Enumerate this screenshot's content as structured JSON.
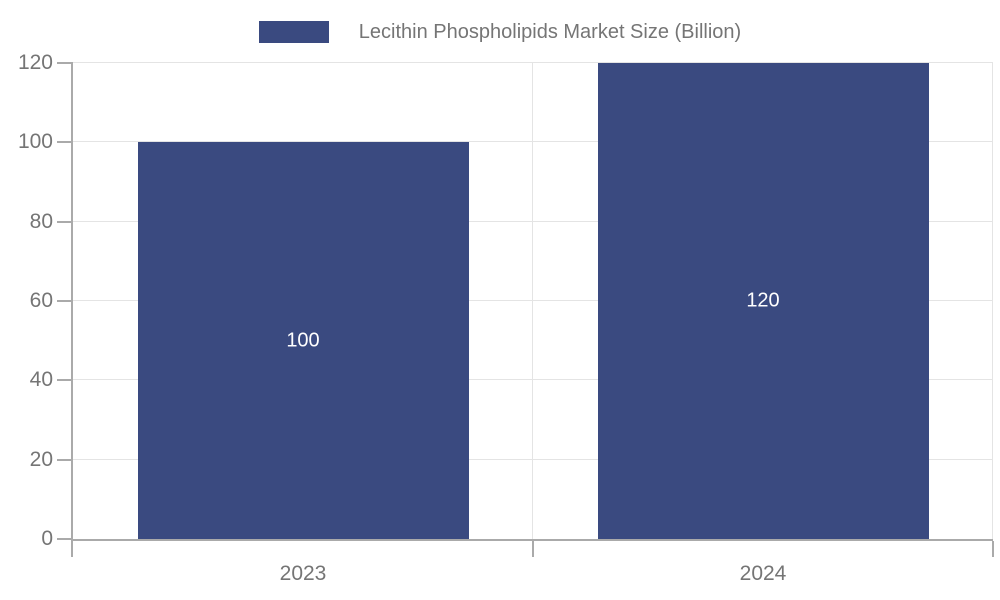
{
  "chart_data": {
    "type": "bar",
    "title": "Lecithin Phospholipids Market Size (Billion)",
    "legend": "Lecithin Phospholipids Market Size (Billion)",
    "legend_position": "top-center",
    "categories": [
      "2023",
      "2024"
    ],
    "series": [
      {
        "name": "Lecithin Phospholipids Market Size (Billion)",
        "values": [
          100,
          120
        ]
      }
    ],
    "bar_value_labels": [
      "100",
      "120"
    ],
    "xlabel": "",
    "ylabel": "",
    "ylim": [
      0,
      120
    ],
    "ytick_interval": 20,
    "yticks": [
      "0",
      "20",
      "40",
      "60",
      "80",
      "100",
      "120"
    ],
    "grid": true,
    "colors": {
      "bar": "#3A4A80",
      "bar_label_text": "#ffffff",
      "axis_line": "#aaaaaa",
      "grid_line": "#e4e4e4",
      "tick_text": "#757575",
      "legend_text": "#757575",
      "background": "#ffffff"
    }
  }
}
